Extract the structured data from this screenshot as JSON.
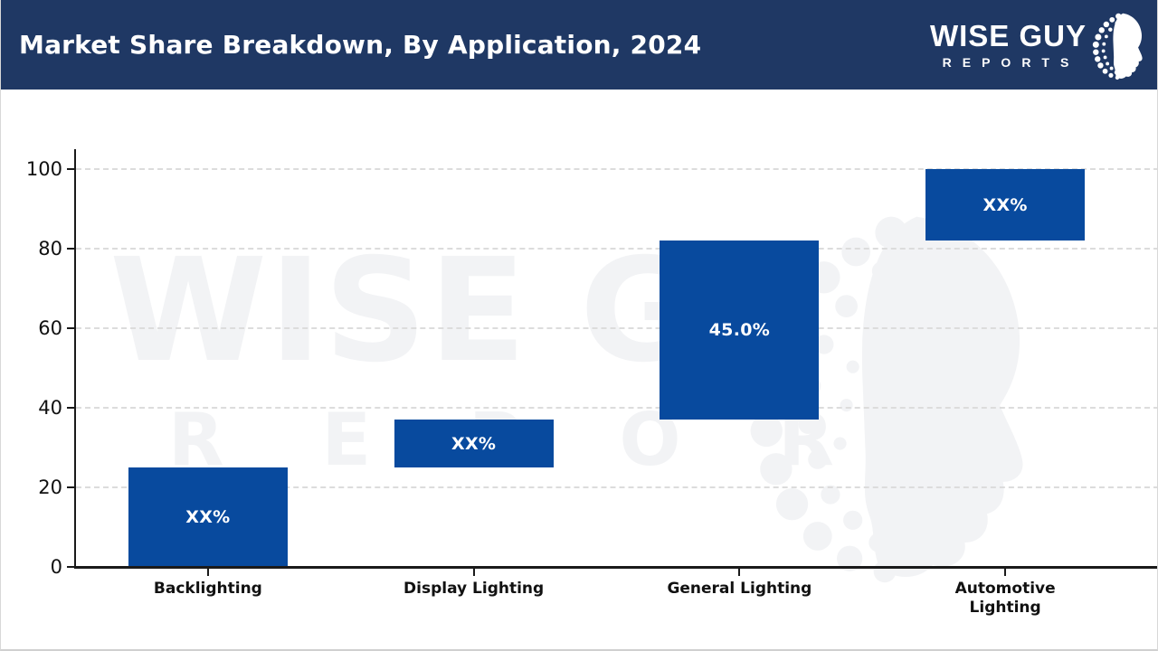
{
  "header": {
    "title": "Market Share Breakdown, By Application, 2024",
    "logo": {
      "name": "WISE GUY",
      "sub": "REPORTS"
    }
  },
  "watermark": {
    "text": "WISE GU",
    "sub": "R E P O R T S"
  },
  "colors": {
    "header_bg": "#1f3864",
    "bar": "#084a9e",
    "axis": "#1a1a1a",
    "grid": "#dcdcdc",
    "watermark": "#f2f3f5"
  },
  "chart_data": {
    "type": "bar",
    "subtype": "waterfall",
    "title": "Market Share Breakdown, By Application, 2024",
    "categories": [
      "Backlighting",
      "Display Lighting",
      "General Lighting",
      "Automotive\nLighting"
    ],
    "segments": [
      {
        "category": "Backlighting",
        "start": 0,
        "end": 25,
        "label": "XX%"
      },
      {
        "category": "Display Lighting",
        "start": 25,
        "end": 37,
        "label": "XX%"
      },
      {
        "category": "General Lighting",
        "start": 37,
        "end": 82,
        "label": "45.0%"
      },
      {
        "category": "Automotive Lighting",
        "start": 82,
        "end": 100,
        "label": "XX%"
      }
    ],
    "values": [
      25,
      12,
      45,
      18
    ],
    "ylim": [
      0,
      100
    ],
    "yticks": [
      0,
      20,
      40,
      60,
      80,
      100
    ],
    "grid": "horizontal-dashed",
    "legend": "none",
    "bar_color": "#084a9e"
  }
}
